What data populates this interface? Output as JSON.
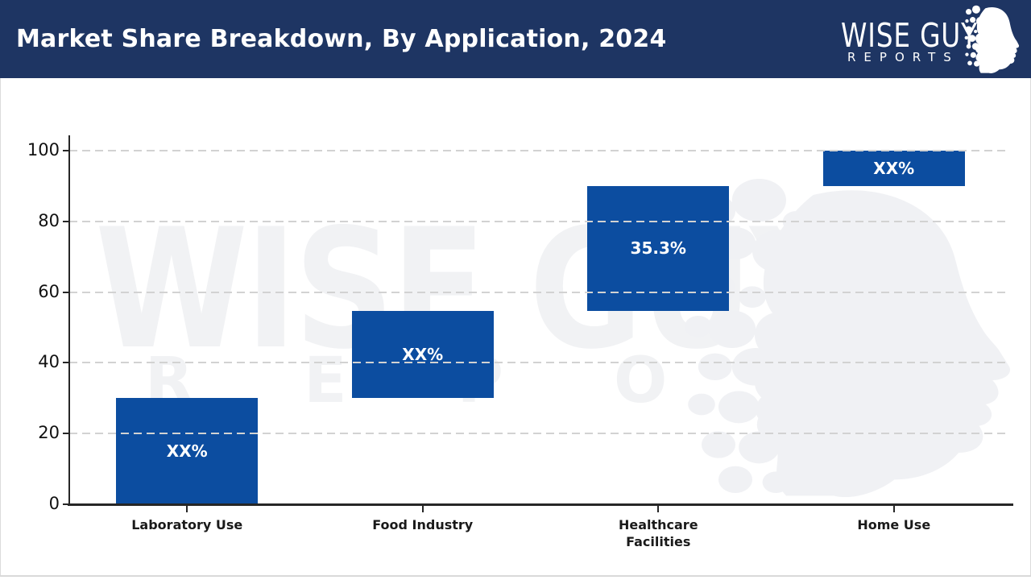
{
  "header": {
    "title": "Market Share Breakdown, By Application, 2024",
    "logo": {
      "primary": "WISE GUY",
      "secondary": "REPORTS"
    }
  },
  "watermark": {
    "primary": "WISE GUY",
    "secondary": "R E P O R T S"
  },
  "chart_data": {
    "type": "bar",
    "subtype": "floating-waterfall",
    "title": "Market Share Breakdown, By Application, 2024",
    "categories": [
      "Laboratory Use",
      "Food Industry",
      "Healthcare Facilities",
      "Home Use"
    ],
    "category_label_lines": [
      [
        "Laboratory Use"
      ],
      [
        "Food Industry"
      ],
      [
        "Healthcare",
        "Facilities"
      ],
      [
        "Home Use"
      ]
    ],
    "segments": [
      {
        "category": "Laboratory Use",
        "start": 0,
        "end": 30.1,
        "label": "XX%"
      },
      {
        "category": "Food Industry",
        "start": 30.1,
        "end": 54.7,
        "label": "XX%"
      },
      {
        "category": "Healthcare Facilities",
        "start": 54.7,
        "end": 90.0,
        "label": "35.3%"
      },
      {
        "category": "Home Use",
        "start": 90.0,
        "end": 100.0,
        "label": "XX%"
      }
    ],
    "ylabel": "",
    "xlabel": "",
    "ylim": [
      0,
      100
    ],
    "yticks": [
      0,
      20,
      40,
      60,
      80,
      100
    ],
    "grid": "horizontal-dashed",
    "legend": "none"
  },
  "colors": {
    "header_bg": "#1e3563",
    "bar": "#0c4da0",
    "bar_label": "#ffffff",
    "grid": "#d2d2d2",
    "axis": "#262626",
    "watermark": "#f1f2f4",
    "frame": "#dcdcdc"
  }
}
